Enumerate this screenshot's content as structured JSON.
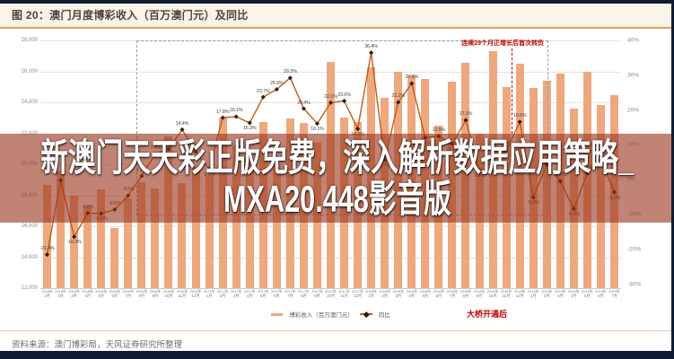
{
  "page": {
    "figure_title": "图 20：澳门月度博彩收入（百万澳门元）及同比",
    "source_note": "资料来源：澳门博彩局，天风证券研究所整理",
    "watermark_line1": "新澳门天天彩正版免费，深入解析数据应用策略_",
    "watermark_line2": "MXA20.448影音版"
  },
  "annotations": {
    "streak_note": "连续29个月正增长后首次转负",
    "bridge_note": "大桥开通后"
  },
  "legend": {
    "bars_label": "博彩收入（百万澳门元）",
    "line_label": "同比"
  },
  "colors": {
    "bar": "#eda87e",
    "line": "#c55a11",
    "marker": "#2b1b10",
    "annotation_red": "#c00000",
    "watermark_band": "rgba(155,55,30,0.62)",
    "title_bg": "#faf3e8",
    "frame": "#111c33",
    "accent_rule": "#dfa269"
  },
  "chart_data": {
    "type": "bar",
    "title": "澳门月度博彩收入（百万澳门元）及同比",
    "grid": true,
    "legend_position": "bottom",
    "left_axis": {
      "min": 12000,
      "max": 28000,
      "step": 2000,
      "ticks": [
        "28,000",
        "26,000",
        "24,000",
        "22,000",
        "20,000",
        "18,000",
        "16,000",
        "14,000",
        "12,000"
      ]
    },
    "right_axis": {
      "min": -30,
      "max": 40,
      "step": 10,
      "ticks": [
        "40%",
        "30%",
        "20%",
        "10%",
        "0%",
        "-10%",
        "-20%",
        "-30%"
      ]
    },
    "x": [
      {
        "y": "2016年",
        "m": "1月"
      },
      {
        "y": "2016年",
        "m": "2月"
      },
      {
        "y": "2016年",
        "m": "3月"
      },
      {
        "y": "2016年",
        "m": "4月"
      },
      {
        "y": "2016年",
        "m": "5月"
      },
      {
        "y": "2016年",
        "m": "6月"
      },
      {
        "y": "2016年",
        "m": "7月"
      },
      {
        "y": "2016年",
        "m": "8月"
      },
      {
        "y": "2016年",
        "m": "9月"
      },
      {
        "y": "2016年",
        "m": "10月"
      },
      {
        "y": "2016年",
        "m": "11月"
      },
      {
        "y": "2016年",
        "m": "12月"
      },
      {
        "y": "2017年",
        "m": "1月"
      },
      {
        "y": "2017年",
        "m": "2月"
      },
      {
        "y": "2017年",
        "m": "3月"
      },
      {
        "y": "2017年",
        "m": "4月"
      },
      {
        "y": "2017年",
        "m": "5月"
      },
      {
        "y": "2017年",
        "m": "6月"
      },
      {
        "y": "2017年",
        "m": "7月"
      },
      {
        "y": "2017年",
        "m": "8月"
      },
      {
        "y": "2017年",
        "m": "9月"
      },
      {
        "y": "2017年",
        "m": "10月"
      },
      {
        "y": "2017年",
        "m": "11月"
      },
      {
        "y": "2017年",
        "m": "12月"
      },
      {
        "y": "2018年",
        "m": "1月"
      },
      {
        "y": "2018年",
        "m": "2月"
      },
      {
        "y": "2018年",
        "m": "3月"
      },
      {
        "y": "2018年",
        "m": "4月"
      },
      {
        "y": "2018年",
        "m": "5月"
      },
      {
        "y": "2018年",
        "m": "6月"
      },
      {
        "y": "2018年",
        "m": "7月"
      },
      {
        "y": "2018年",
        "m": "8月"
      },
      {
        "y": "2018年",
        "m": "9月"
      },
      {
        "y": "2018年",
        "m": "10月"
      },
      {
        "y": "2018年",
        "m": "11月"
      },
      {
        "y": "2018年",
        "m": "12月"
      },
      {
        "y": "2019年",
        "m": "1月"
      },
      {
        "y": "2019年",
        "m": "2月"
      },
      {
        "y": "2019年",
        "m": "3月"
      },
      {
        "y": "2019年",
        "m": "4月"
      },
      {
        "y": "2019年",
        "m": "5月"
      },
      {
        "y": "2019年",
        "m": "6月"
      },
      {
        "y": "2019年",
        "m": "7月"
      }
    ],
    "series": [
      {
        "name": "博彩收入（百万澳门元）",
        "kind": "bar",
        "axis": "left",
        "values": [
          18674,
          19521,
          17980,
          17340,
          18389,
          15885,
          17770,
          18837,
          18430,
          21818,
          18790,
          19863,
          19252,
          22993,
          21224,
          20164,
          22744,
          19992,
          22965,
          22676,
          21408,
          26631,
          23038,
          22700,
          26265,
          24312,
          25952,
          25727,
          25488,
          22492,
          25327,
          26559,
          21952,
          27328,
          24995,
          26468,
          24942,
          25370,
          25840,
          23588,
          25952,
          23812,
          24453
        ]
      },
      {
        "name": "同比",
        "kind": "line",
        "axis": "right",
        "unit": "%",
        "values": [
          -21.4,
          -0.1,
          -16.3,
          -9.5,
          -9.6,
          -8.5,
          -4.5,
          1.1,
          7.4,
          8.8,
          14.4,
          8.0,
          3.1,
          17.8,
          18.1,
          16.3,
          23.7,
          25.9,
          29.2,
          20.4,
          16.1,
          22.1,
          22.6,
          14.6,
          36.4,
          5.7,
          22.2,
          27.6,
          12.1,
          12.5,
          10.3,
          17.1,
          2.8,
          2.9,
          8.5,
          16.6,
          -5.0,
          4.4,
          -0.4,
          -8.3,
          1.8,
          5.9,
          -3.5
        ]
      }
    ]
  }
}
